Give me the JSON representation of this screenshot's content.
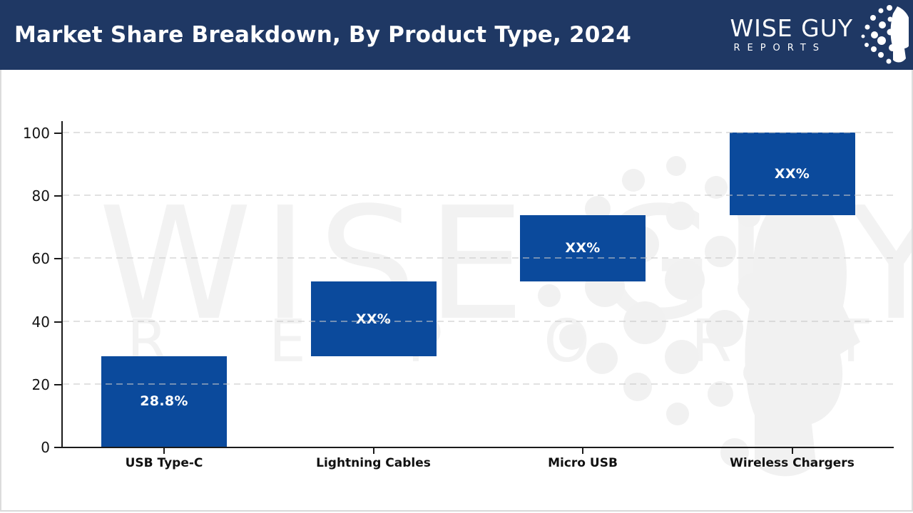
{
  "header": {
    "title": "Market Share Breakdown, By Product Type, 2024",
    "bg_color": "#1f3864",
    "text_color": "#ffffff",
    "logo": {
      "line1": "WISE GUY",
      "line2": "REPORTS"
    }
  },
  "watermark": {
    "line1": "WISE GUY",
    "line2": "R E P O R T S"
  },
  "chart_data": {
    "type": "bar",
    "variant": "waterfall",
    "title": "Market Share Breakdown, By Product Type, 2024",
    "categories": [
      "USB Type-C",
      "Lightning Cables",
      "Micro USB",
      "Wireless Chargers"
    ],
    "segments": [
      {
        "category": "USB Type-C",
        "start": 0,
        "end": 28.8,
        "label": "28.8%"
      },
      {
        "category": "Lightning Cables",
        "start": 28.8,
        "end": 52.6,
        "label": "XX%"
      },
      {
        "category": "Micro USB",
        "start": 52.6,
        "end": 73.8,
        "label": "XX%"
      },
      {
        "category": "Wireless Chargers",
        "start": 73.8,
        "end": 100,
        "label": "XX%"
      }
    ],
    "xlabel": "",
    "ylabel": "",
    "yticks": [
      0,
      20,
      40,
      60,
      80,
      100
    ],
    "ylim": [
      0,
      105
    ],
    "grid": "horizontal-dashed",
    "legend": "none",
    "bar_color": "#0b4a9c",
    "bar_label_color": "#ffffff"
  }
}
